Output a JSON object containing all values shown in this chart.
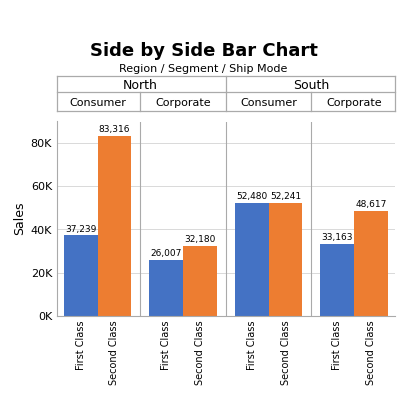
{
  "title": "Side by Side Bar Chart",
  "subtitle": "Region / Segment / Ship Mode",
  "ylabel": "Sales",
  "bar_color_first": "#4472C4",
  "bar_color_second": "#ED7D31",
  "background_color": "#FFFFFF",
  "grid_color": "#D9D9D9",
  "groups": [
    {
      "region": "North",
      "segment": "Consumer",
      "first_class": 37239,
      "second_class": 83316
    },
    {
      "region": "North",
      "segment": "Corporate",
      "first_class": 26007,
      "second_class": 32180
    },
    {
      "region": "South",
      "segment": "Consumer",
      "first_class": 52480,
      "second_class": 52241
    },
    {
      "region": "South",
      "segment": "Corporate",
      "first_class": 33163,
      "second_class": 48617
    }
  ],
  "ylim": [
    0,
    90000
  ],
  "yticks": [
    0,
    20000,
    40000,
    60000,
    80000
  ],
  "ytick_labels": [
    "0K",
    "20K",
    "40K",
    "60K",
    "80K"
  ],
  "divider_color": "#AAAAAA",
  "spine_color": "#AAAAAA",
  "title_fontsize": 13,
  "subtitle_fontsize": 8,
  "region_fontsize": 9,
  "segment_fontsize": 8,
  "ylabel_fontsize": 9,
  "ytick_fontsize": 8,
  "xtick_fontsize": 7,
  "value_fontsize": 6.5
}
